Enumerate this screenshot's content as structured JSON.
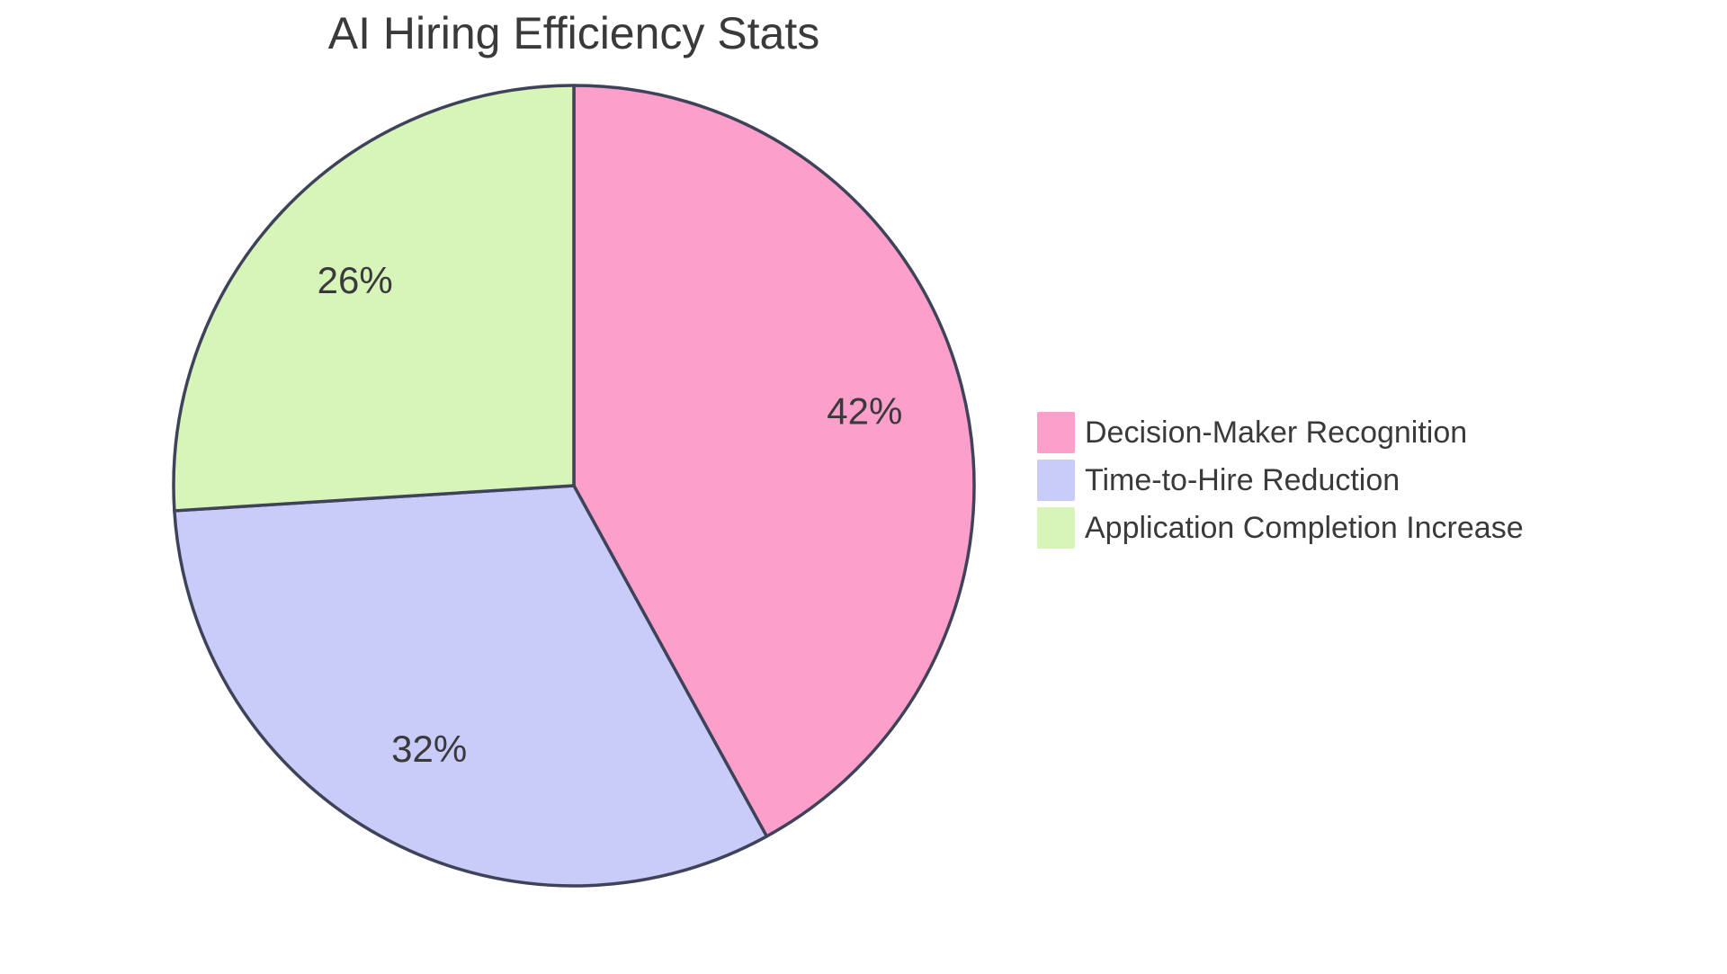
{
  "page": {
    "background_color": "#ffffff"
  },
  "chart_data": {
    "type": "pie",
    "title": "AI Hiring Efficiency Stats",
    "categories": [
      "Decision-Maker Recognition",
      "Time-to-Hire Reduction",
      "Application Completion Increase"
    ],
    "values": [
      42,
      32,
      26
    ],
    "slice_labels": [
      "42%",
      "32%",
      "26%"
    ],
    "colors": [
      "#fca0cb",
      "#c9cbf8",
      "#d7f4b9"
    ],
    "slice_border_color": "#3e4359",
    "slice_border_width": 3.5,
    "text_color": "#3a3a3c",
    "start_angle_deg": -90,
    "direction": "clockwise",
    "legend_position": "right",
    "grid": false,
    "label_radius_fraction": 0.75
  },
  "legend": {
    "items": [
      {
        "label": "Decision-Maker Recognition",
        "color": "#fca0cb"
      },
      {
        "label": "Time-to-Hire Reduction",
        "color": "#c9cbf8"
      },
      {
        "label": "Application Completion Increase",
        "color": "#d7f4b9"
      }
    ]
  }
}
